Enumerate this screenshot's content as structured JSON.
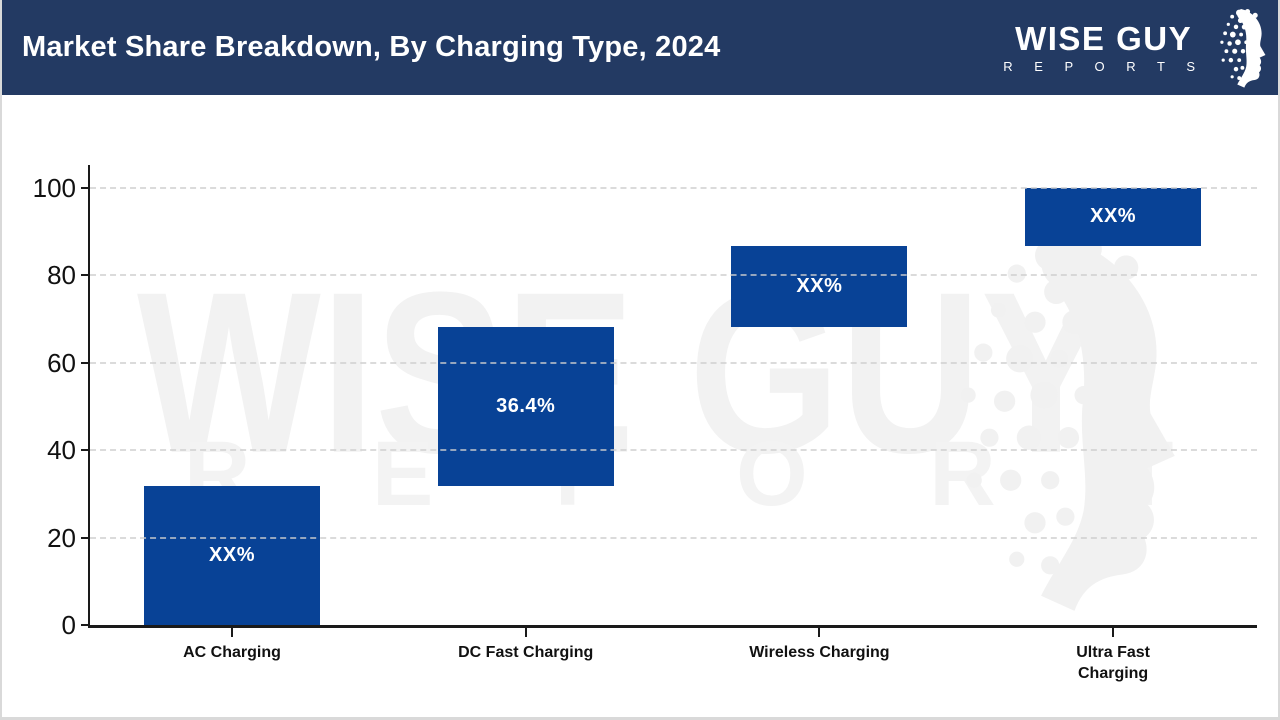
{
  "header": {
    "title": "Market Share Breakdown, By Charging Type, 2024",
    "logo": {
      "line1": "WISE GUY",
      "line2": "R E P O R T S"
    }
  },
  "watermark": {
    "line1": "WISE GUY",
    "line2": "R E P O R T S"
  },
  "chart_data": {
    "type": "bar",
    "subtype": "waterfall",
    "title": "Market Share Breakdown, By Charging Type, 2024",
    "categories": [
      "AC Charging",
      "DC Fast Charging",
      "Wireless Charging",
      "Ultra Fast Charging"
    ],
    "category_lines": [
      [
        "AC Charging"
      ],
      [
        "DC Fast Charging"
      ],
      [
        "Wireless Charging"
      ],
      [
        "Ultra Fast",
        "Charging"
      ]
    ],
    "series": [
      {
        "name": "Market Share",
        "segments": [
          {
            "category": "AC Charging",
            "start": 0,
            "end": 31.8,
            "label": "XX%"
          },
          {
            "category": "DC Fast Charging",
            "start": 31.8,
            "end": 68.2,
            "label": "36.4%"
          },
          {
            "category": "Wireless Charging",
            "start": 68.2,
            "end": 86.6,
            "label": "XX%"
          },
          {
            "category": "Ultra Fast Charging",
            "start": 86.6,
            "end": 100,
            "label": "XX%"
          }
        ]
      }
    ],
    "bar_labels": [
      "XX%",
      "36.4%",
      "XX%",
      "XX%"
    ],
    "xlabel": "",
    "ylabel": "",
    "ylim": [
      0,
      100
    ],
    "yticks": [
      "0",
      "20",
      "40",
      "60",
      "80",
      "100"
    ],
    "grid": "horizontal dashed",
    "legend": "none",
    "colors": {
      "bar": "#084296",
      "header_bg": "#233a63",
      "grid": "#d9d9d9",
      "axis": "#1a1a1a",
      "watermark": "#f2f2f2",
      "bar_label_text": "#ffffff"
    }
  }
}
